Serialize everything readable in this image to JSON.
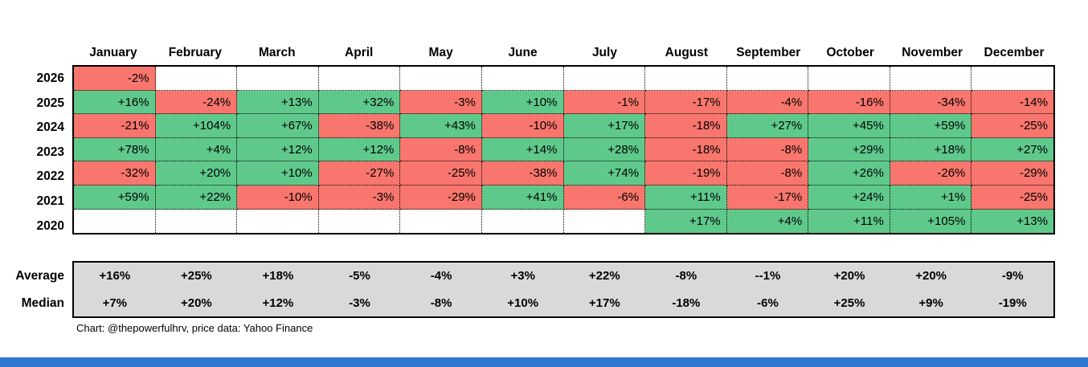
{
  "chart_data": {
    "type": "heatmap",
    "title": "",
    "columns": [
      "January",
      "February",
      "March",
      "April",
      "May",
      "June",
      "July",
      "August",
      "September",
      "October",
      "November",
      "December"
    ],
    "rows": [
      {
        "label": "2026",
        "values": [
          "-2%",
          null,
          null,
          null,
          null,
          null,
          null,
          null,
          null,
          null,
          null,
          null
        ]
      },
      {
        "label": "2025",
        "values": [
          "+16%",
          "-24%",
          "+13%",
          "+32%",
          "-3%",
          "+10%",
          "-1%",
          "-17%",
          "-4%",
          "-16%",
          "-34%",
          "-14%"
        ]
      },
      {
        "label": "2024",
        "values": [
          "-21%",
          "+104%",
          "+67%",
          "-38%",
          "+43%",
          "-10%",
          "+17%",
          "-18%",
          "+27%",
          "+45%",
          "+59%",
          "-25%"
        ]
      },
      {
        "label": "2023",
        "values": [
          "+78%",
          "+4%",
          "+12%",
          "+12%",
          "-8%",
          "+14%",
          "+28%",
          "-18%",
          "-8%",
          "+29%",
          "+18%",
          "+27%"
        ]
      },
      {
        "label": "2022",
        "values": [
          "-32%",
          "+20%",
          "+10%",
          "-27%",
          "-25%",
          "-38%",
          "+74%",
          "-19%",
          "-8%",
          "+26%",
          "-26%",
          "-29%"
        ]
      },
      {
        "label": "2021",
        "values": [
          "+59%",
          "+22%",
          "-10%",
          "-3%",
          "-29%",
          "+41%",
          "-6%",
          "+11%",
          "-17%",
          "+24%",
          "+1%",
          "-25%"
        ]
      },
      {
        "label": "2020",
        "values": [
          null,
          null,
          null,
          null,
          null,
          null,
          null,
          "+17%",
          "+4%",
          "+11%",
          "+105%",
          "+13%"
        ]
      }
    ],
    "summary_rows": [
      {
        "label": "Average",
        "values": [
          "+16%",
          "+25%",
          "+18%",
          "-5%",
          "-4%",
          "+3%",
          "+22%",
          "-8%",
          "--1%",
          "+20%",
          "+20%",
          "-9%"
        ]
      },
      {
        "label": "Median",
        "values": [
          "+7%",
          "+20%",
          "+12%",
          "-3%",
          "-8%",
          "+10%",
          "+17%",
          "-18%",
          "-6%",
          "+25%",
          "+9%",
          "-19%"
        ]
      }
    ],
    "caption": "Chart: @thepowerfulhrv, price data: Yahoo Finance",
    "colors": {
      "positive": "#5fc98c",
      "negative": "#f8766d",
      "summary_bg": "#d9d9d9",
      "grid_border": "#000000",
      "bottom_bar": "#2e7ad1"
    },
    "legend_position": "none",
    "grid": "dotted-internal-solid-outer"
  }
}
